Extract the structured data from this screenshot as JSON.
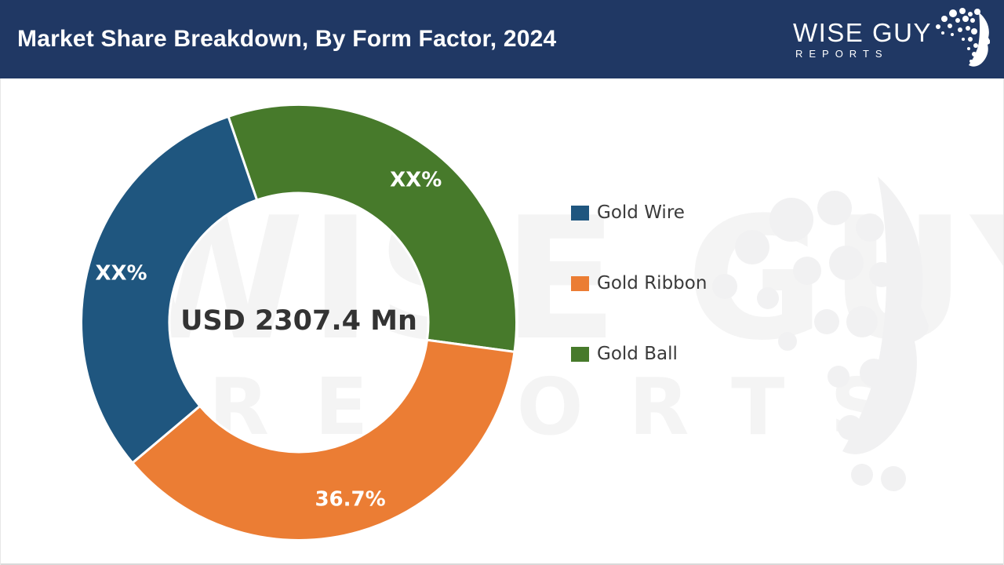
{
  "header": {
    "title": "Market Share Breakdown, By Form Factor, 2024",
    "bg_color": "#203864",
    "logo": {
      "name": "WISE GUY",
      "sub": "REPORTS"
    }
  },
  "watermark": {
    "line1": "WISE GUY",
    "line2": "REPORTS"
  },
  "chart_data": {
    "type": "pie",
    "subtype": "donut",
    "title": "Market Share Breakdown, By Form Factor, 2024",
    "center_label": "USD 2307.4 Mn",
    "start_angle_cw_from_top_deg": -18.9,
    "inner_radius_ratio": 0.59,
    "legend_position": "right",
    "series": [
      {
        "name": "Gold Ball",
        "value": 32.4,
        "label": "XX%",
        "color": "#477A2B"
      },
      {
        "name": "Gold Ribbon",
        "value": 36.7,
        "label": "36.7%",
        "color": "#EB7D34"
      },
      {
        "name": "Gold Wire",
        "value": 30.9,
        "label": "XX%",
        "color": "#1F567F"
      }
    ],
    "legend": {
      "entries": [
        {
          "label": "Gold Wire",
          "color": "#1F567F"
        },
        {
          "label": "Gold Ribbon",
          "color": "#EB7D34"
        },
        {
          "label": "Gold Ball",
          "color": "#477A2B"
        }
      ]
    }
  }
}
